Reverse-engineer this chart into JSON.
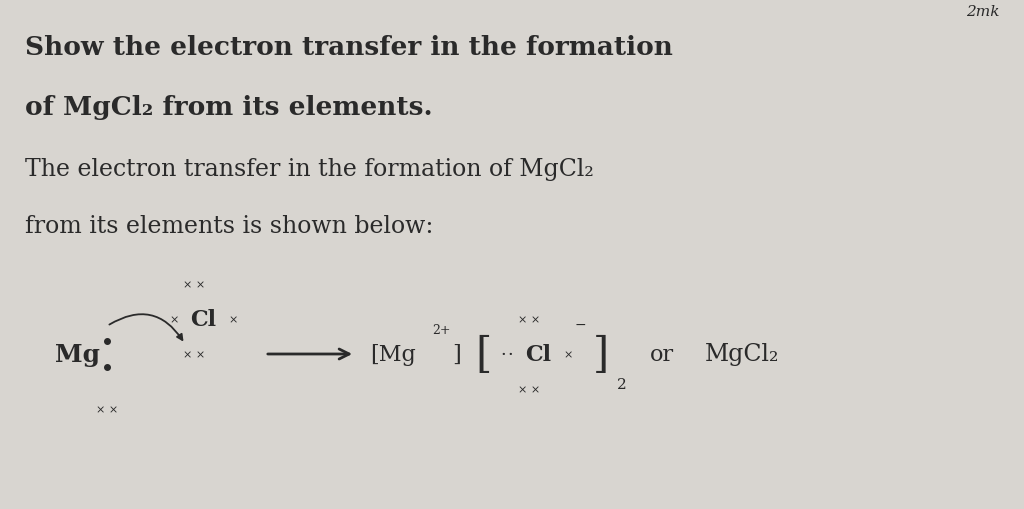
{
  "bg_color": "#d8d5d0",
  "text_color": "#2a2a2a",
  "title_line1": "Show the electron transfer in the formation",
  "title_line2": "of MgCl",
  "title_line2_sub": "2",
  "title_line2_end": " from its elements.",
  "body_line1a": "The electron transfer in the formation of MgCl",
  "body_line1b": "2",
  "body_line2": "from its elements is shown below:",
  "watermark": "2mk",
  "title_fontsize": 19,
  "body_fontsize": 17,
  "diagram_fontsize": 16
}
